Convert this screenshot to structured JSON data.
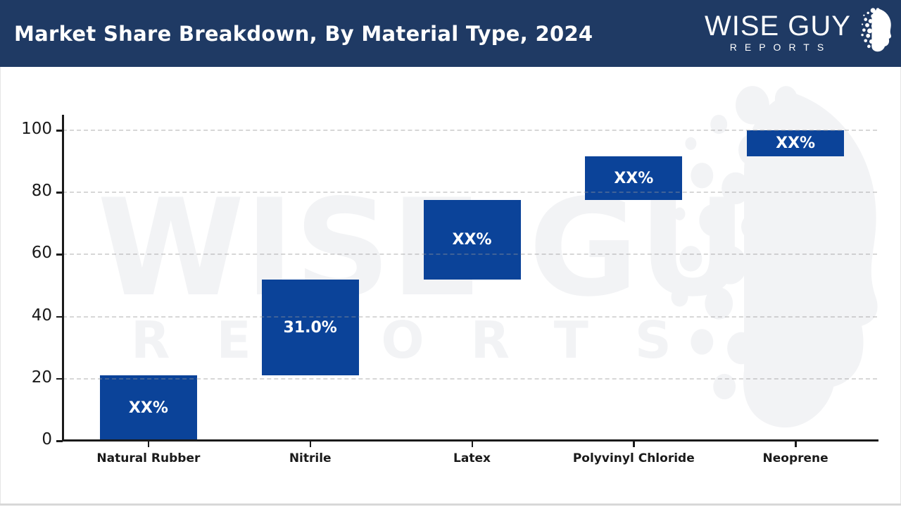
{
  "header": {
    "title": "Market Share Breakdown, By Material Type, 2024",
    "logo": {
      "line1": "WISE GUY",
      "line2": "REPORTS"
    }
  },
  "watermark": {
    "line1": "WISE GUY",
    "line2": "REPORTS"
  },
  "colors": {
    "header_bg": "#1f3a64",
    "bar_blue": "#0b4399",
    "axis": "#1a1a1a",
    "grid_dash": "rgba(150,150,150,0.38)",
    "bar_label": "#ffffff",
    "tick_label": "#1a1a1a",
    "watermark": "#f2f3f5"
  },
  "chart_data": {
    "type": "bar",
    "subtype": "waterfall",
    "title": "Market Share Breakdown, By Material Type, 2024",
    "categories": [
      "Natural Rubber",
      "Nitrile",
      "Latex",
      "Polyvinyl Chloride",
      "Neoprene"
    ],
    "bars": [
      {
        "category": "Natural Rubber",
        "start": 0,
        "end": 21,
        "value_label": "XX%"
      },
      {
        "category": "Nitrile",
        "start": 21,
        "end": 52,
        "value_label": "31.0%"
      },
      {
        "category": "Latex",
        "start": 52,
        "end": 77.5,
        "value_label": "XX%"
      },
      {
        "category": "Polyvinyl Chloride",
        "start": 77.5,
        "end": 91.5,
        "value_label": "XX%"
      },
      {
        "category": "Neoprene",
        "start": 91.5,
        "end": 100,
        "value_label": "XX%"
      }
    ],
    "xlabel": "",
    "ylabel": "",
    "ylim": [
      0,
      105
    ],
    "yticks": [
      0,
      20,
      40,
      60,
      80,
      100
    ],
    "grid": "horizontal-dashed",
    "legend": "none"
  }
}
